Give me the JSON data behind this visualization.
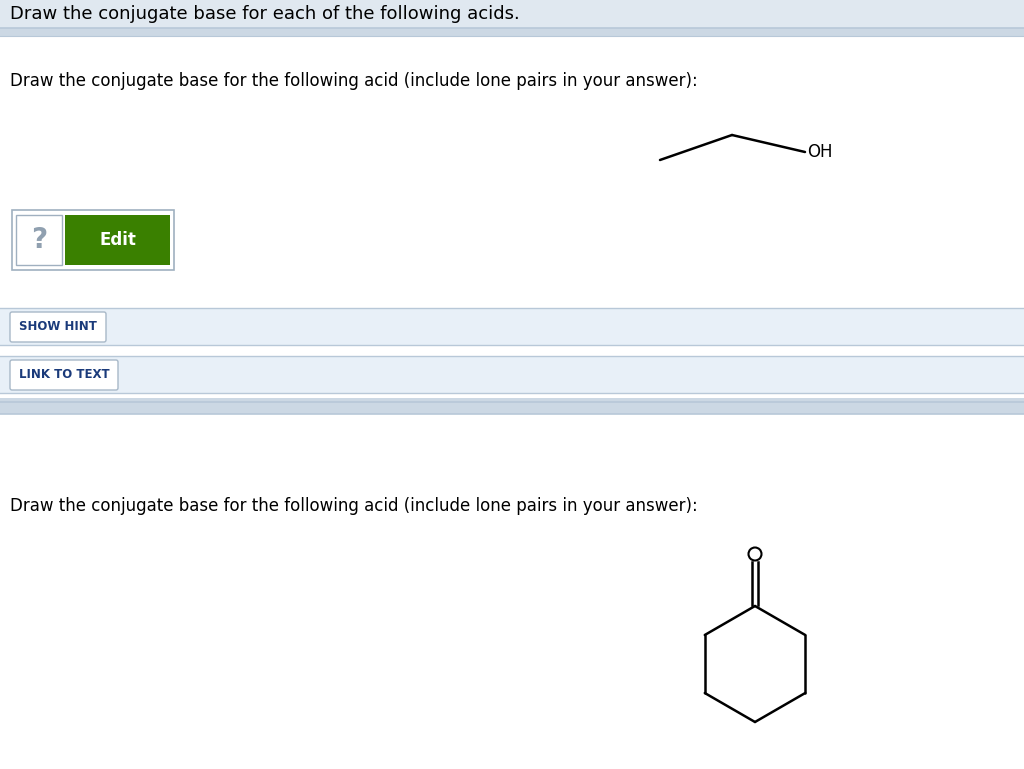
{
  "bg_color": "#ffffff",
  "header_text": "Draw the conjugate base for each of the following acids.",
  "header_bg": "#e0e8f0",
  "section1_text": "Draw the conjugate base for the following acid (include lone pairs in your answer):",
  "section2_text": "Draw the conjugate base for the following acid (include lone pairs in your answer):",
  "separator_color": "#b8c8d8",
  "separator_color2": "#ccd8e4",
  "hint_bg": "#e8f0f8",
  "button_show_hint": "SHOW HINT",
  "button_link_text": "LINK TO TEXT",
  "button_border_color": "#a8b8c8",
  "button_text_color": "#1a3a7a",
  "edit_button_bg": "#3a8000",
  "edit_button_text": "Edit",
  "question_box_border": "#a0b0c0",
  "question_mark_color": "#90a0b0",
  "text_color": "#000000",
  "font_size_header": 13,
  "font_size_body": 12
}
